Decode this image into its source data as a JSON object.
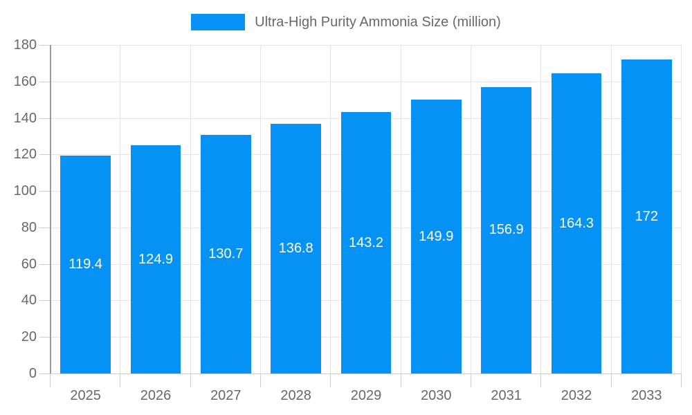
{
  "chart_data": {
    "type": "bar",
    "title": "Ultra-High Purity Ammonia Size (million)",
    "categories": [
      "2025",
      "2026",
      "2027",
      "2028",
      "2029",
      "2030",
      "2031",
      "2032",
      "2033"
    ],
    "values": [
      119.4,
      124.9,
      130.7,
      136.8,
      143.2,
      149.9,
      156.9,
      164.3,
      172
    ],
    "xlabel": "",
    "ylabel": "",
    "ylim": [
      0,
      180
    ],
    "ytick_step": 20,
    "ytick_labels": [
      "0",
      "20",
      "40",
      "60",
      "80",
      "100",
      "120",
      "140",
      "160",
      "180"
    ],
    "grid": true,
    "legend_position": "top-center",
    "bar_label_position": "center",
    "colors": {
      "bar": "#0691f5",
      "bar_label": "#ffffff",
      "axis_text": "#686868",
      "axis_line": "#999999",
      "tick": "#cccccc",
      "gridline": "#e4e4e4",
      "background": "#ffffff"
    }
  }
}
